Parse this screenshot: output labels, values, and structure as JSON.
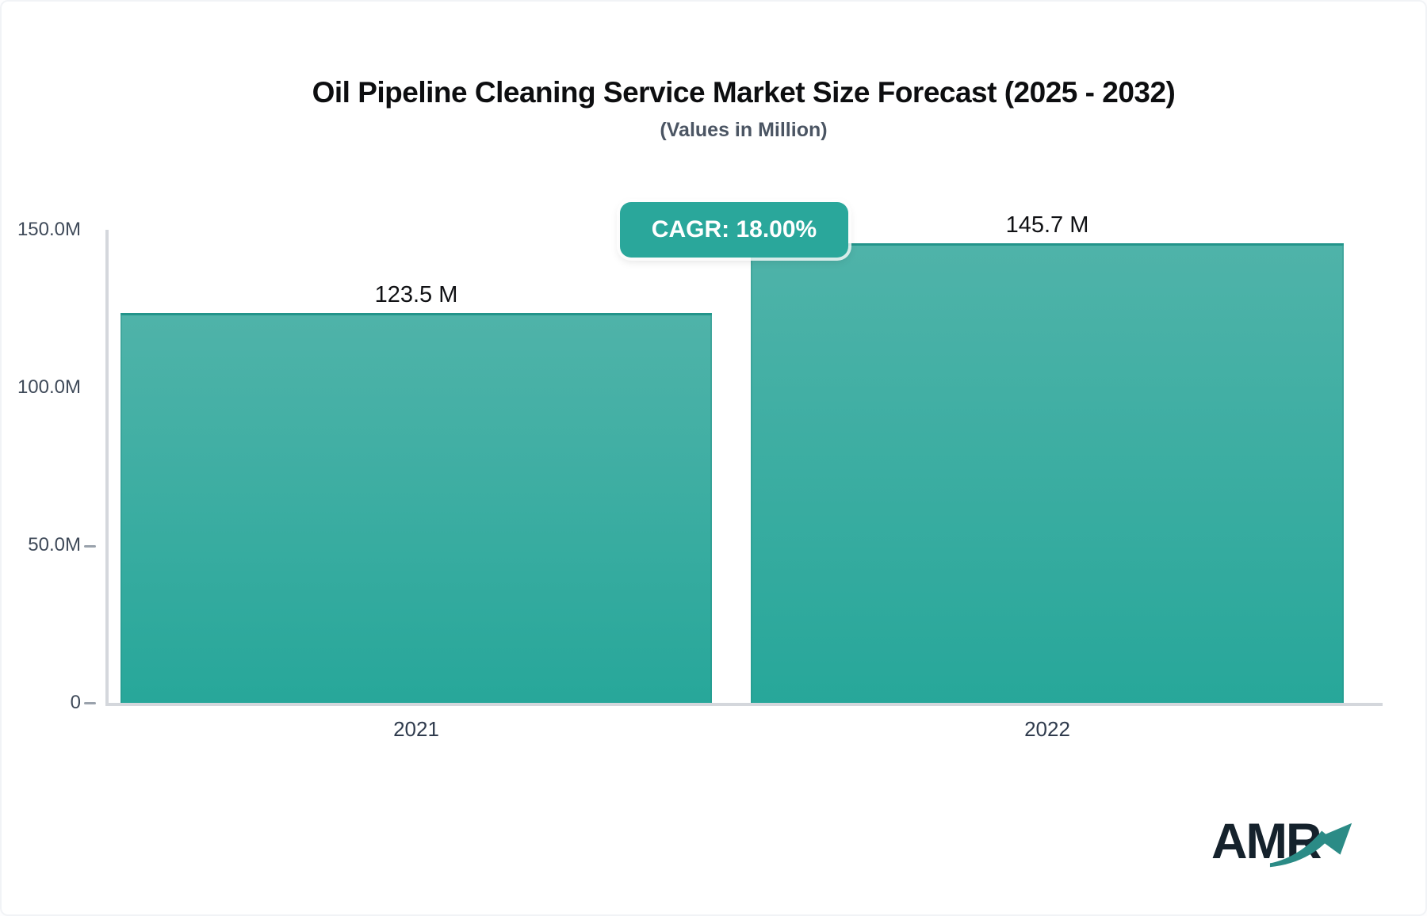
{
  "header": {
    "title": "Oil Pipeline Cleaning Service Market Size Forecast (2025 - 2032)",
    "subtitle": "(Values in Million)"
  },
  "badge": {
    "label": "CAGR: 18.00%",
    "color": "#2aa79b"
  },
  "chart_data": {
    "type": "bar",
    "title": "Oil Pipeline Cleaning Service Market Size Forecast (2025 - 2032)",
    "subtitle": "(Values in Million)",
    "categories": [
      "2021",
      "2022"
    ],
    "values": [
      123.5,
      145.7
    ],
    "value_labels": [
      "123.5 M",
      "145.7 M"
    ],
    "unit": "Million",
    "ylim": [
      0,
      150
    ],
    "y_ticks": [
      "150.0M",
      "100.0M",
      "50.0M",
      "0"
    ],
    "y_tick_values": [
      150,
      100,
      50,
      0
    ],
    "grid": false,
    "legend": "none",
    "bar_color_top": "#4fb3a9",
    "bar_color_bottom": "#27a79a",
    "annotation": "CAGR: 18.00%"
  },
  "colors": {
    "accent": "#2aa79b",
    "axis": "#d4d7dc",
    "title_text": "#0d0e10",
    "subtitle_text": "#4b5563",
    "logo_text": "#15222c",
    "logo_arrow": "#2b8b86"
  },
  "logo": {
    "text": "AMR",
    "arrow_icon": "trend-up-arrow"
  }
}
